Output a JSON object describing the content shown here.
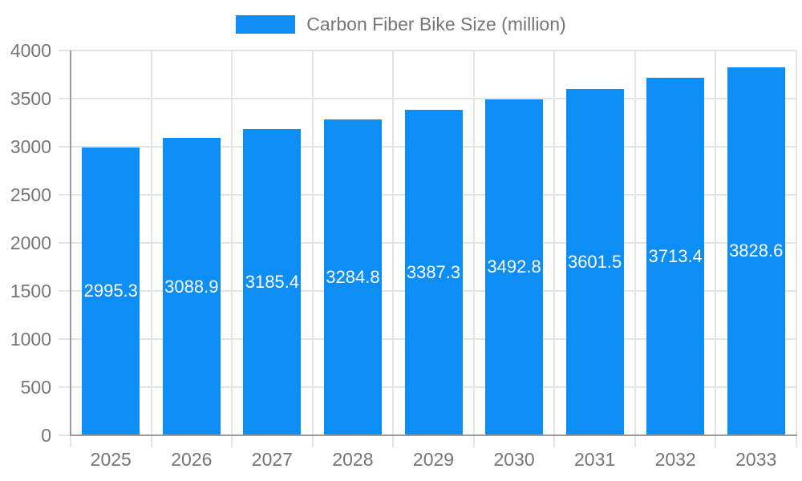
{
  "legend": {
    "label": "Carbon Fiber Bike Size (million)"
  },
  "colors": {
    "bar": "#0d8ef4",
    "grid": "#e4e4e4",
    "axis": "#9a9a9a",
    "text": "#757575",
    "value_label": "#ffffff"
  },
  "chart_data": {
    "type": "bar",
    "title": "Carbon Fiber Bike Size (million)",
    "xlabel": "",
    "ylabel": "",
    "categories": [
      "2025",
      "2026",
      "2027",
      "2028",
      "2029",
      "2030",
      "2031",
      "2032",
      "2033"
    ],
    "values": [
      2995.3,
      3088.9,
      3185.4,
      3284.8,
      3387.3,
      3492.8,
      3601.5,
      3713.4,
      3828.6
    ],
    "value_labels": [
      "2995.3",
      "3088.9",
      "3185.4",
      "3284.8",
      "3387.3",
      "3492.8",
      "3601.5",
      "3713.4",
      "3828.6"
    ],
    "ylim": [
      0,
      4000
    ],
    "y_ticks": [
      0,
      500,
      1000,
      1500,
      2000,
      2500,
      3000,
      3500,
      4000
    ],
    "grid": true,
    "legend_position": "top",
    "bar_color": "#0d8ef4",
    "value_label_position": "inside-center"
  }
}
